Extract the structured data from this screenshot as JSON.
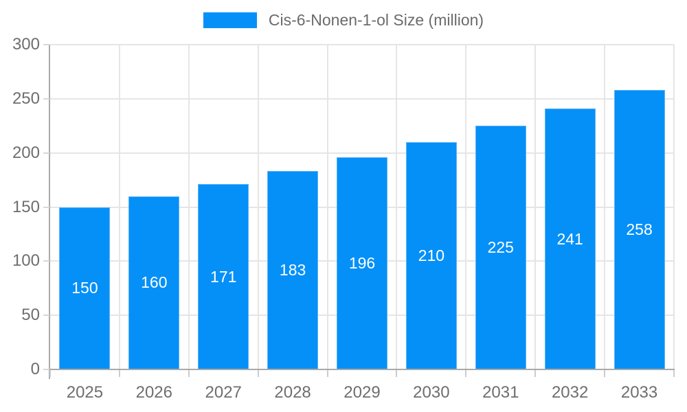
{
  "chart_data": {
    "type": "bar",
    "title": "Cis-6-Nonen-1-ol Size (million)",
    "legend_position": "top-center",
    "categories": [
      "2025",
      "2026",
      "2027",
      "2028",
      "2029",
      "2030",
      "2031",
      "2032",
      "2033"
    ],
    "series": [
      {
        "name": "Cis-6-Nonen-1-ol Size (million)",
        "values": [
          150,
          160,
          171,
          183,
          196,
          210,
          225,
          241,
          258
        ]
      }
    ],
    "xlabel": "",
    "ylabel": "",
    "ylim": [
      0,
      300
    ],
    "yticks": [
      0,
      50,
      100,
      150,
      200,
      250,
      300
    ],
    "grid": true,
    "value_label_position": "inside-center",
    "colors": {
      "bar_fill": "#0590f8",
      "bar_border": "#61b4f8",
      "value_label_text": "#ffffff",
      "axis_text": "#6e6e6e",
      "gridline": "#e5e5e5",
      "axis_line": "#a9a9a9"
    }
  }
}
